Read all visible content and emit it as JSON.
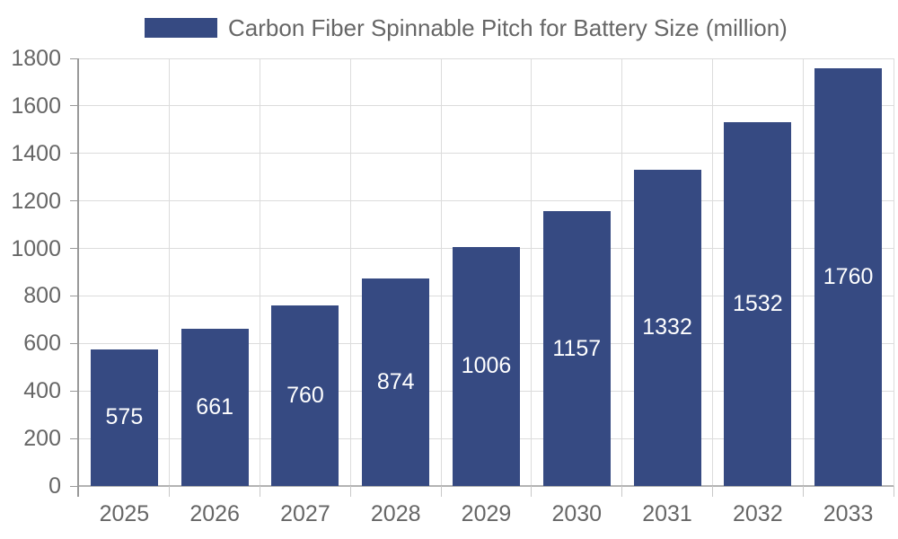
{
  "colors": {
    "bar": "#364a82",
    "bar_label": "#ffffff",
    "grid": "#dcdcdc",
    "axis_line": "#999999",
    "baseline": "#b3b3b3",
    "tick": "#c8c8c8",
    "tick_text": "#666666",
    "legend_text": "#666666",
    "background": "#ffffff"
  },
  "chart_data": {
    "type": "bar",
    "title": "",
    "categories": [
      "2025",
      "2026",
      "2027",
      "2028",
      "2029",
      "2030",
      "2031",
      "2032",
      "2033"
    ],
    "series": [
      {
        "name": "Carbon Fiber Spinnable Pitch for Battery Size (million)",
        "values": [
          575,
          661,
          760,
          874,
          1006,
          1157,
          1332,
          1532,
          1760
        ]
      }
    ],
    "xlabel": "",
    "ylabel": "",
    "ylim": [
      0,
      1800
    ],
    "ytick_step": 200,
    "ytick_labels": [
      "0",
      "200",
      "400",
      "600",
      "800",
      "1000",
      "1200",
      "1400",
      "1600",
      "1800"
    ],
    "grid": true,
    "legend_position": "top-center",
    "bar_value_labels": "inside-center"
  }
}
